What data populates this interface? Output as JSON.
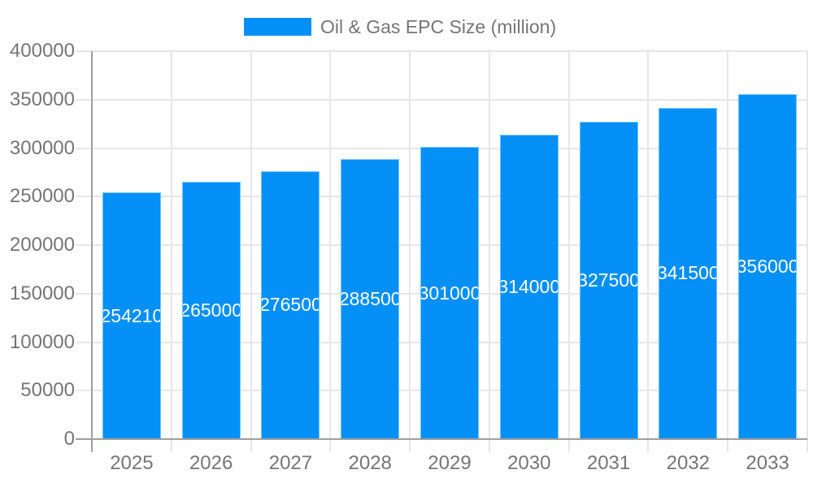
{
  "chart_data": {
    "type": "bar",
    "title": "Oil & Gas EPC Size (million)",
    "legend": [
      "Oil & Gas EPC Size (million)"
    ],
    "legend_position": "top",
    "categories": [
      "2025",
      "2026",
      "2027",
      "2028",
      "2029",
      "2030",
      "2031",
      "2032",
      "2033"
    ],
    "values": [
      254210,
      265000,
      276500,
      288500,
      301000,
      314000,
      327500,
      341500,
      356000
    ],
    "bar_value_labels": [
      "254210",
      "265000",
      "276500",
      "288500",
      "301000",
      "314000",
      "327500",
      "341500",
      "356000"
    ],
    "xlabel": "",
    "ylabel": "",
    "ylim": [
      0,
      400000
    ],
    "yticks": [
      0,
      50000,
      100000,
      150000,
      200000,
      250000,
      300000,
      350000,
      400000
    ],
    "ytick_labels": [
      "0",
      "50000",
      "100000",
      "150000",
      "200000",
      "250000",
      "300000",
      "350000",
      "400000"
    ],
    "grid": true,
    "colors": {
      "bar": "#0590f8",
      "grid": "#e6e6e6",
      "axis": "#9e9e9e",
      "text": "#757575",
      "bar_label_text": "#ffffff",
      "background": "#ffffff"
    }
  }
}
